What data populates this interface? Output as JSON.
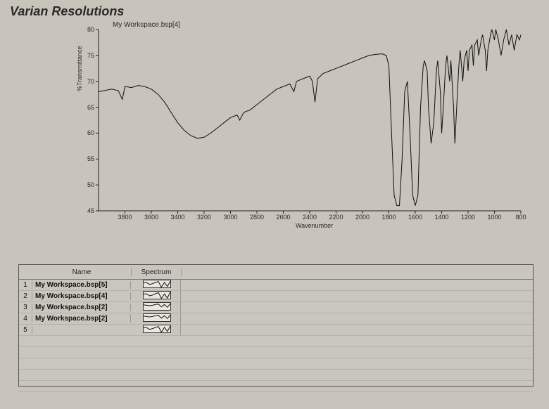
{
  "app_title": "Varian Resolutions",
  "chart": {
    "type": "line",
    "trace_label": "My Workspace.bsp[4]",
    "xlabel": "Wavenumber",
    "ylabel": "%Transmittance",
    "xlim": [
      4000,
      800
    ],
    "ylim": [
      45,
      80
    ],
    "xticks": [
      3800,
      3600,
      3400,
      3200,
      3000,
      2800,
      2600,
      2400,
      2200,
      2000,
      1800,
      1600,
      1400,
      1200,
      1000,
      800
    ],
    "yticks": [
      45,
      50,
      55,
      60,
      65,
      70,
      75,
      80
    ],
    "line_color": "#0f0f0f",
    "line_width": 1,
    "background_color": "#c8c4bc",
    "axis_color": "#222222",
    "tick_font_size": 9,
    "label_font_size": 9,
    "series": [
      {
        "x": 4000,
        "y": 68
      },
      {
        "x": 3900,
        "y": 68.5
      },
      {
        "x": 3850,
        "y": 68.2
      },
      {
        "x": 3820,
        "y": 66.5
      },
      {
        "x": 3800,
        "y": 69
      },
      {
        "x": 3750,
        "y": 68.8
      },
      {
        "x": 3700,
        "y": 69.2
      },
      {
        "x": 3650,
        "y": 69
      },
      {
        "x": 3600,
        "y": 68.5
      },
      {
        "x": 3550,
        "y": 67.5
      },
      {
        "x": 3500,
        "y": 66
      },
      {
        "x": 3450,
        "y": 64
      },
      {
        "x": 3400,
        "y": 62
      },
      {
        "x": 3350,
        "y": 60.5
      },
      {
        "x": 3300,
        "y": 59.5
      },
      {
        "x": 3250,
        "y": 59
      },
      {
        "x": 3200,
        "y": 59.2
      },
      {
        "x": 3150,
        "y": 60
      },
      {
        "x": 3100,
        "y": 61
      },
      {
        "x": 3050,
        "y": 62
      },
      {
        "x": 3000,
        "y": 63
      },
      {
        "x": 2950,
        "y": 63.5
      },
      {
        "x": 2930,
        "y": 62.5
      },
      {
        "x": 2900,
        "y": 64
      },
      {
        "x": 2850,
        "y": 64.5
      },
      {
        "x": 2800,
        "y": 65.5
      },
      {
        "x": 2750,
        "y": 66.5
      },
      {
        "x": 2700,
        "y": 67.5
      },
      {
        "x": 2650,
        "y": 68.5
      },
      {
        "x": 2600,
        "y": 69
      },
      {
        "x": 2550,
        "y": 69.5
      },
      {
        "x": 2520,
        "y": 68
      },
      {
        "x": 2500,
        "y": 70
      },
      {
        "x": 2450,
        "y": 70.5
      },
      {
        "x": 2400,
        "y": 71
      },
      {
        "x": 2380,
        "y": 70
      },
      {
        "x": 2360,
        "y": 66
      },
      {
        "x": 2340,
        "y": 70.5
      },
      {
        "x": 2300,
        "y": 71.5
      },
      {
        "x": 2250,
        "y": 72
      },
      {
        "x": 2200,
        "y": 72.5
      },
      {
        "x": 2150,
        "y": 73
      },
      {
        "x": 2100,
        "y": 73.5
      },
      {
        "x": 2050,
        "y": 74
      },
      {
        "x": 2000,
        "y": 74.5
      },
      {
        "x": 1950,
        "y": 75
      },
      {
        "x": 1900,
        "y": 75.2
      },
      {
        "x": 1850,
        "y": 75.3
      },
      {
        "x": 1820,
        "y": 75
      },
      {
        "x": 1800,
        "y": 73
      },
      {
        "x": 1780,
        "y": 60
      },
      {
        "x": 1760,
        "y": 48
      },
      {
        "x": 1740,
        "y": 46
      },
      {
        "x": 1720,
        "y": 46
      },
      {
        "x": 1700,
        "y": 55
      },
      {
        "x": 1680,
        "y": 68
      },
      {
        "x": 1660,
        "y": 70
      },
      {
        "x": 1640,
        "y": 60
      },
      {
        "x": 1620,
        "y": 48
      },
      {
        "x": 1600,
        "y": 46
      },
      {
        "x": 1580,
        "y": 48
      },
      {
        "x": 1560,
        "y": 65
      },
      {
        "x": 1540,
        "y": 73
      },
      {
        "x": 1530,
        "y": 74
      },
      {
        "x": 1510,
        "y": 72
      },
      {
        "x": 1500,
        "y": 65
      },
      {
        "x": 1480,
        "y": 58
      },
      {
        "x": 1460,
        "y": 62
      },
      {
        "x": 1440,
        "y": 72
      },
      {
        "x": 1430,
        "y": 74
      },
      {
        "x": 1410,
        "y": 68
      },
      {
        "x": 1400,
        "y": 60
      },
      {
        "x": 1390,
        "y": 64
      },
      {
        "x": 1370,
        "y": 73
      },
      {
        "x": 1360,
        "y": 75
      },
      {
        "x": 1340,
        "y": 70
      },
      {
        "x": 1330,
        "y": 74
      },
      {
        "x": 1310,
        "y": 65
      },
      {
        "x": 1300,
        "y": 58
      },
      {
        "x": 1290,
        "y": 63
      },
      {
        "x": 1270,
        "y": 73
      },
      {
        "x": 1260,
        "y": 76
      },
      {
        "x": 1240,
        "y": 70
      },
      {
        "x": 1230,
        "y": 74
      },
      {
        "x": 1210,
        "y": 76
      },
      {
        "x": 1200,
        "y": 72
      },
      {
        "x": 1190,
        "y": 76
      },
      {
        "x": 1170,
        "y": 77
      },
      {
        "x": 1160,
        "y": 73
      },
      {
        "x": 1150,
        "y": 77
      },
      {
        "x": 1130,
        "y": 78
      },
      {
        "x": 1120,
        "y": 75
      },
      {
        "x": 1100,
        "y": 78
      },
      {
        "x": 1090,
        "y": 79
      },
      {
        "x": 1070,
        "y": 76
      },
      {
        "x": 1060,
        "y": 72
      },
      {
        "x": 1050,
        "y": 76
      },
      {
        "x": 1030,
        "y": 79
      },
      {
        "x": 1020,
        "y": 80
      },
      {
        "x": 1000,
        "y": 78
      },
      {
        "x": 990,
        "y": 80
      },
      {
        "x": 970,
        "y": 78
      },
      {
        "x": 950,
        "y": 75
      },
      {
        "x": 930,
        "y": 78
      },
      {
        "x": 910,
        "y": 80
      },
      {
        "x": 890,
        "y": 77
      },
      {
        "x": 870,
        "y": 79
      },
      {
        "x": 850,
        "y": 76
      },
      {
        "x": 830,
        "y": 79
      },
      {
        "x": 810,
        "y": 78
      },
      {
        "x": 800,
        "y": 79
      }
    ]
  },
  "table": {
    "columns": [
      "",
      "Name",
      "Spectrum"
    ],
    "rows": [
      {
        "idx": "1",
        "name": "My Workspace.bsp[5]",
        "thumb": [
          68,
          69,
          60,
          64,
          70,
          74,
          46,
          70,
          50,
          76
        ]
      },
      {
        "idx": "2",
        "name": "My Workspace.bsp[4]",
        "thumb": [
          68,
          69,
          59,
          63,
          70,
          75,
          46,
          68,
          48,
          78
        ]
      },
      {
        "idx": "3",
        "name": "My Workspace.bsp[2]",
        "thumb": [
          70,
          68,
          66,
          68,
          72,
          74,
          60,
          72,
          58,
          76
        ]
      },
      {
        "idx": "4",
        "name": "My Workspace.bsp[2]",
        "thumb": [
          70,
          68,
          66,
          68,
          72,
          74,
          60,
          72,
          58,
          76
        ]
      },
      {
        "idx": "5",
        "name": "",
        "thumb": [
          68,
          69,
          60,
          64,
          70,
          74,
          46,
          70,
          50,
          76
        ]
      }
    ],
    "empty_rows": 5,
    "thumb_ylim": [
      45,
      80
    ]
  }
}
